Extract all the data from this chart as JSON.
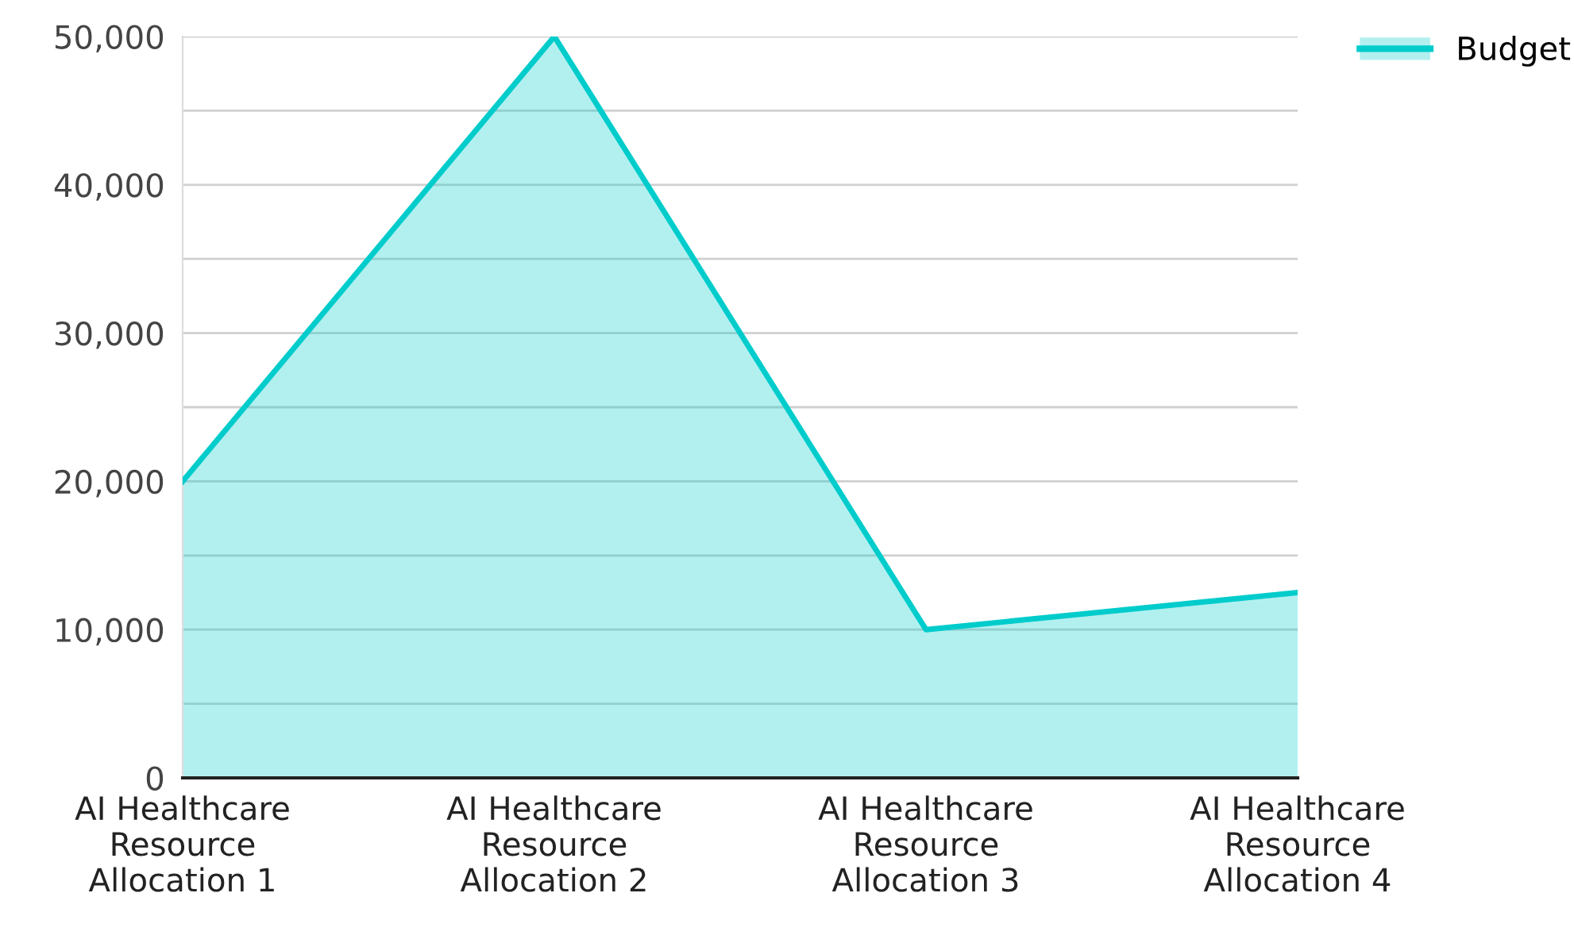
{
  "chart_data": {
    "type": "area",
    "categories": [
      "AI Healthcare\nResource\nAllocation 1",
      "AI Healthcare\nResource\nAllocation 2",
      "AI Healthcare\nResource\nAllocation 3",
      "AI Healthcare\nResource\nAllocation 4"
    ],
    "series": [
      {
        "name": "Budget",
        "color": "#00cccc",
        "values": [
          20000,
          50000,
          10000,
          12500
        ]
      }
    ],
    "ylim": [
      0,
      50000
    ],
    "yticks": [
      {
        "value": 0,
        "label": "0"
      },
      {
        "value": 5000,
        "label": null
      },
      {
        "value": 10000,
        "label": "10,000"
      },
      {
        "value": 15000,
        "label": null
      },
      {
        "value": 20000,
        "label": "20,000"
      },
      {
        "value": 25000,
        "label": null
      },
      {
        "value": 30000,
        "label": "30,000"
      },
      {
        "value": 35000,
        "label": null
      },
      {
        "value": 40000,
        "label": "40,000"
      },
      {
        "value": 45000,
        "label": null
      },
      {
        "value": 50000,
        "label": "50,000"
      }
    ],
    "grid": "y",
    "legend": "top right",
    "marker": "none",
    "line_style": "solid"
  }
}
